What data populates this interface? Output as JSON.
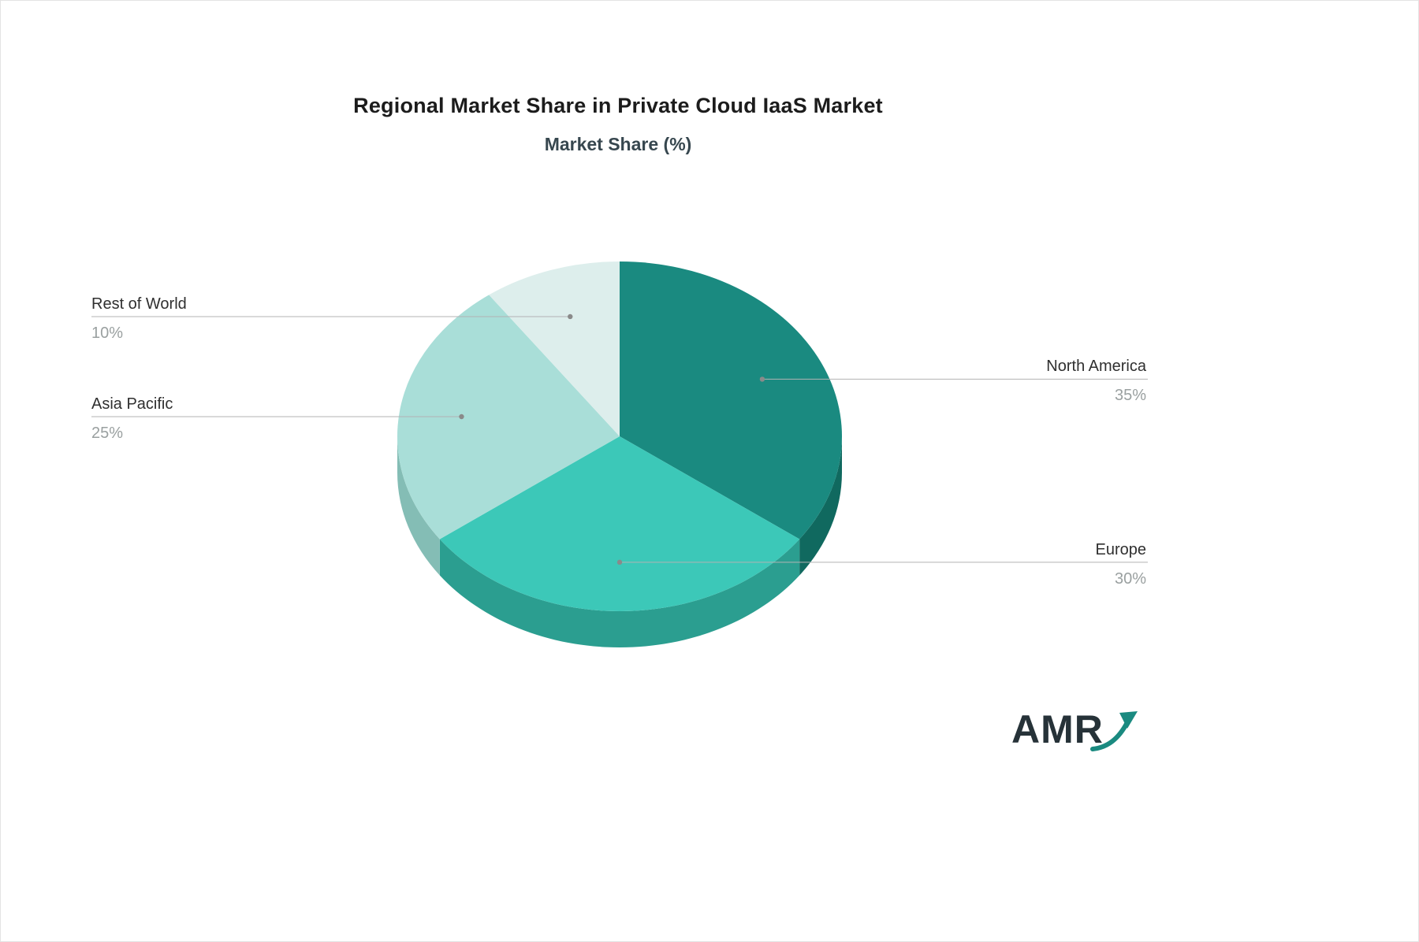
{
  "title": "Regional Market Share in Private Cloud IaaS Market",
  "subtitle": "Market Share (%)",
  "logo": {
    "text": "AMR"
  },
  "colors": {
    "accent_teal": "#1a8a80",
    "leader_line": "#b3b3b3",
    "label_text": "#2f2f2f",
    "percent_text": "#9aa0a0"
  },
  "chart_data": {
    "type": "pie",
    "title": "Regional Market Share in Private Cloud IaaS Market",
    "subtitle": "Market Share (%)",
    "unit": "%",
    "style": "3d-pie",
    "start_angle_deg": 0,
    "direction": "clockwise",
    "legend_position": "none",
    "slices": [
      {
        "label": "North America",
        "value": 35,
        "pct_label": "35%",
        "color": "#1a8a80",
        "side_color": "#10695f"
      },
      {
        "label": "Europe",
        "value": 30,
        "pct_label": "30%",
        "color": "#3cc8b8",
        "side_color": "#2b9e90"
      },
      {
        "label": "Asia Pacific",
        "value": 25,
        "pct_label": "25%",
        "color": "#a9ded8",
        "side_color": "#84bdb5"
      },
      {
        "label": "Rest of World",
        "value": 10,
        "pct_label": "10%",
        "color": "#ddeeec",
        "side_color": "#b9d8d4"
      }
    ]
  }
}
